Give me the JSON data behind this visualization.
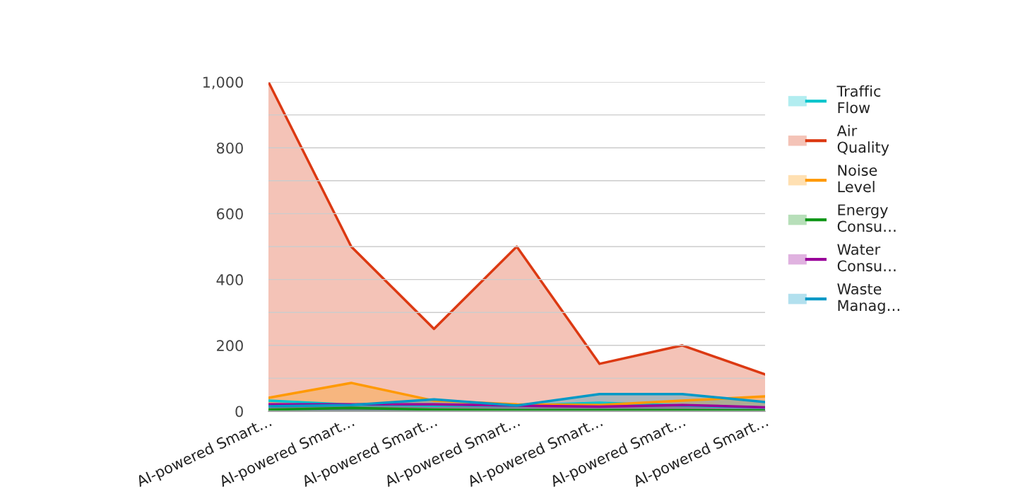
{
  "chart_data": {
    "type": "area",
    "categories": [
      "AI-powered Smart…",
      "AI-powered Smart…",
      "AI-powered Smart…",
      "AI-powered Smart…",
      "AI-powered Smart…",
      "AI-powered Smart…",
      "AI-powered Smart…"
    ],
    "series": [
      {
        "name": "Traffic Flow",
        "color": "#00c5cc",
        "values": [
          32,
          20,
          17,
          17,
          26,
          17,
          11
        ]
      },
      {
        "name": "Air Quality",
        "color": "#dc3912",
        "values": [
          1000,
          500,
          250,
          500,
          144,
          200,
          112
        ]
      },
      {
        "name": "Noise Level",
        "color": "#ff9900",
        "values": [
          41,
          86,
          32,
          21,
          19,
          32,
          45
        ]
      },
      {
        "name": "Energy Consu…",
        "color": "#109618",
        "values": [
          5,
          10,
          5,
          3,
          3,
          3,
          2
        ]
      },
      {
        "name": "Water Consu…",
        "color": "#990099",
        "values": [
          21,
          21,
          21,
          17,
          14,
          19,
          12
        ]
      },
      {
        "name": "Waste Manag…",
        "color": "#0099c6",
        "values": [
          15,
          19,
          36,
          17,
          52,
          52,
          28
        ]
      }
    ],
    "ylim": [
      0,
      1000
    ],
    "yticks": [
      0,
      {
        "value": 100,
        "label": null
      },
      200,
      {
        "value": 300,
        "label": null
      },
      400,
      {
        "value": 500,
        "label": null
      },
      600,
      {
        "value": 700,
        "label": null
      },
      800,
      {
        "value": 900,
        "label": null
      },
      {
        "value": 1000,
        "label": "1,000"
      }
    ],
    "grid": "y",
    "legend": "right"
  }
}
